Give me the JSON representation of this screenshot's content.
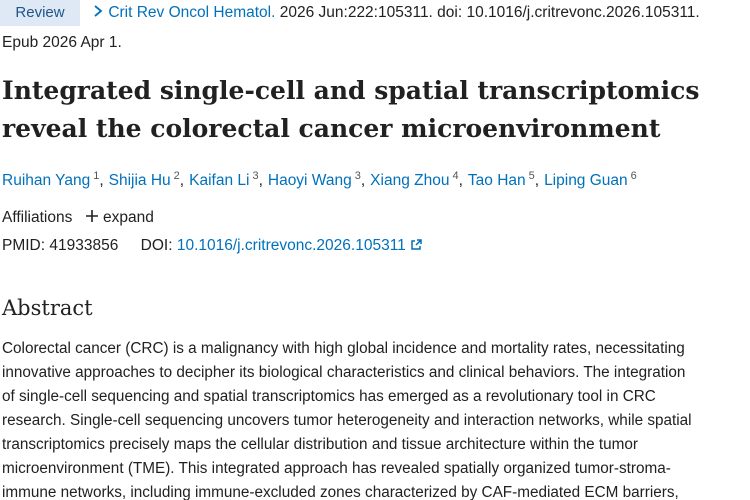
{
  "header": {
    "badge": "Review",
    "journal": "Crit Rev Oncol Hematol.",
    "citation": "2026 Jun:222:105311. doi: 10.1016/j.critrevonc.2026.105311.",
    "epub": "Epub 2026 Apr 1."
  },
  "title": "Integrated single-cell and spatial transcriptomics reveal the colorectal cancer microenvironment",
  "authors": [
    {
      "name": "Ruihan Yang",
      "sup": "1"
    },
    {
      "name": "Shijia Hu",
      "sup": "2"
    },
    {
      "name": "Kaifan Li",
      "sup": "3"
    },
    {
      "name": "Haoyi Wang",
      "sup": "3"
    },
    {
      "name": "Xiang Zhou",
      "sup": "4"
    },
    {
      "name": "Tao Han",
      "sup": "5"
    },
    {
      "name": "Liping Guan",
      "sup": "6"
    }
  ],
  "affiliations": {
    "label": "Affiliations",
    "expand": "expand"
  },
  "ids": {
    "pmid_label": "PMID:",
    "pmid": "41933856",
    "doi_label": "DOI:",
    "doi": "10.1016/j.critrevonc.2026.105311"
  },
  "abstract": {
    "heading": "Abstract",
    "lines": [
      "Colorectal cancer (CRC) is a malignancy with high global incidence and mortality rates, necessitating",
      "innovative approaches to decipher its biological characteristics and clinical behaviors. The integration",
      "of single-cell sequencing and spatial transcriptomics has emerged as a revolutionary tool in CRC",
      "research. Single-cell sequencing uncovers tumor heterogeneity and interaction networks, while spatial",
      "transcriptomics precisely maps the cellular distribution and tissue architecture within the tumor",
      "microenvironment (TME). This integrated approach has revealed spatially organized tumor-stroma-",
      "immune networks, including immune-excluded zones characterized by CAF-mediated ECM barriers,"
    ]
  }
}
